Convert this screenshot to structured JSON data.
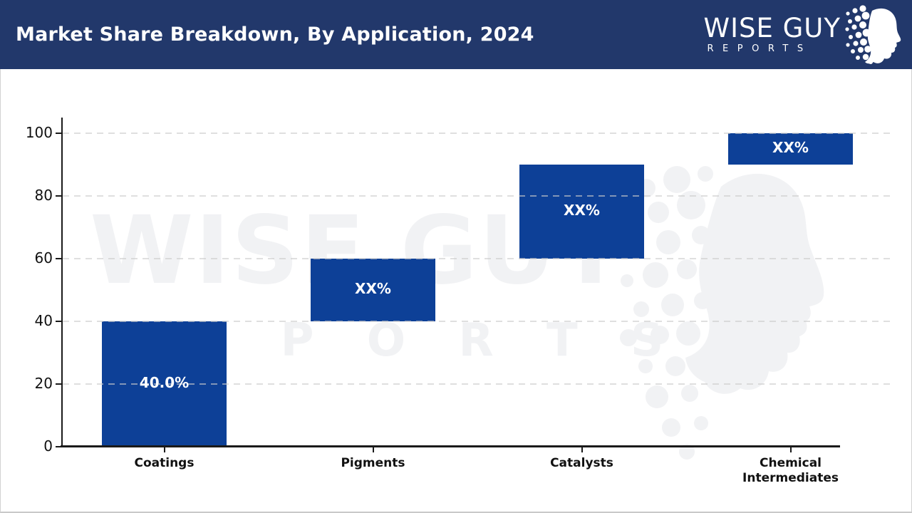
{
  "header": {
    "title": "Market Share Breakdown, By Application, 2024",
    "logo": {
      "line1": "WISE GUY",
      "line2": "REPORTS"
    }
  },
  "watermark": {
    "line1": "WISE GUY",
    "line2": "R E P O R T S"
  },
  "chart_data": {
    "type": "bar",
    "subtype": "waterfall",
    "title": "Market Share Breakdown, By Application, 2024",
    "categories": [
      "Coatings",
      "Pigments",
      "Catalysts",
      "Chemical Intermediates"
    ],
    "bars": [
      {
        "category": "Coatings",
        "start": 0,
        "end": 40,
        "label": "40.0%"
      },
      {
        "category": "Pigments",
        "start": 40,
        "end": 60,
        "label": "XX%"
      },
      {
        "category": "Catalysts",
        "start": 60,
        "end": 90,
        "label": "XX%"
      },
      {
        "category": "Chemical Intermediates",
        "start": 90,
        "end": 100,
        "label": "XX%"
      }
    ],
    "values_pct": [
      40,
      20,
      30,
      10
    ],
    "yticks": [
      0,
      20,
      40,
      60,
      80,
      100
    ],
    "ylim": [
      0,
      105
    ],
    "xlabel": "",
    "ylabel": "",
    "grid": "horizontal-dashed",
    "legend": "none",
    "bar_color": "#0d4097",
    "bar_label_color": "#ffffff",
    "header_bg_color": "#22386b",
    "watermark_color": "#f1f2f4"
  }
}
